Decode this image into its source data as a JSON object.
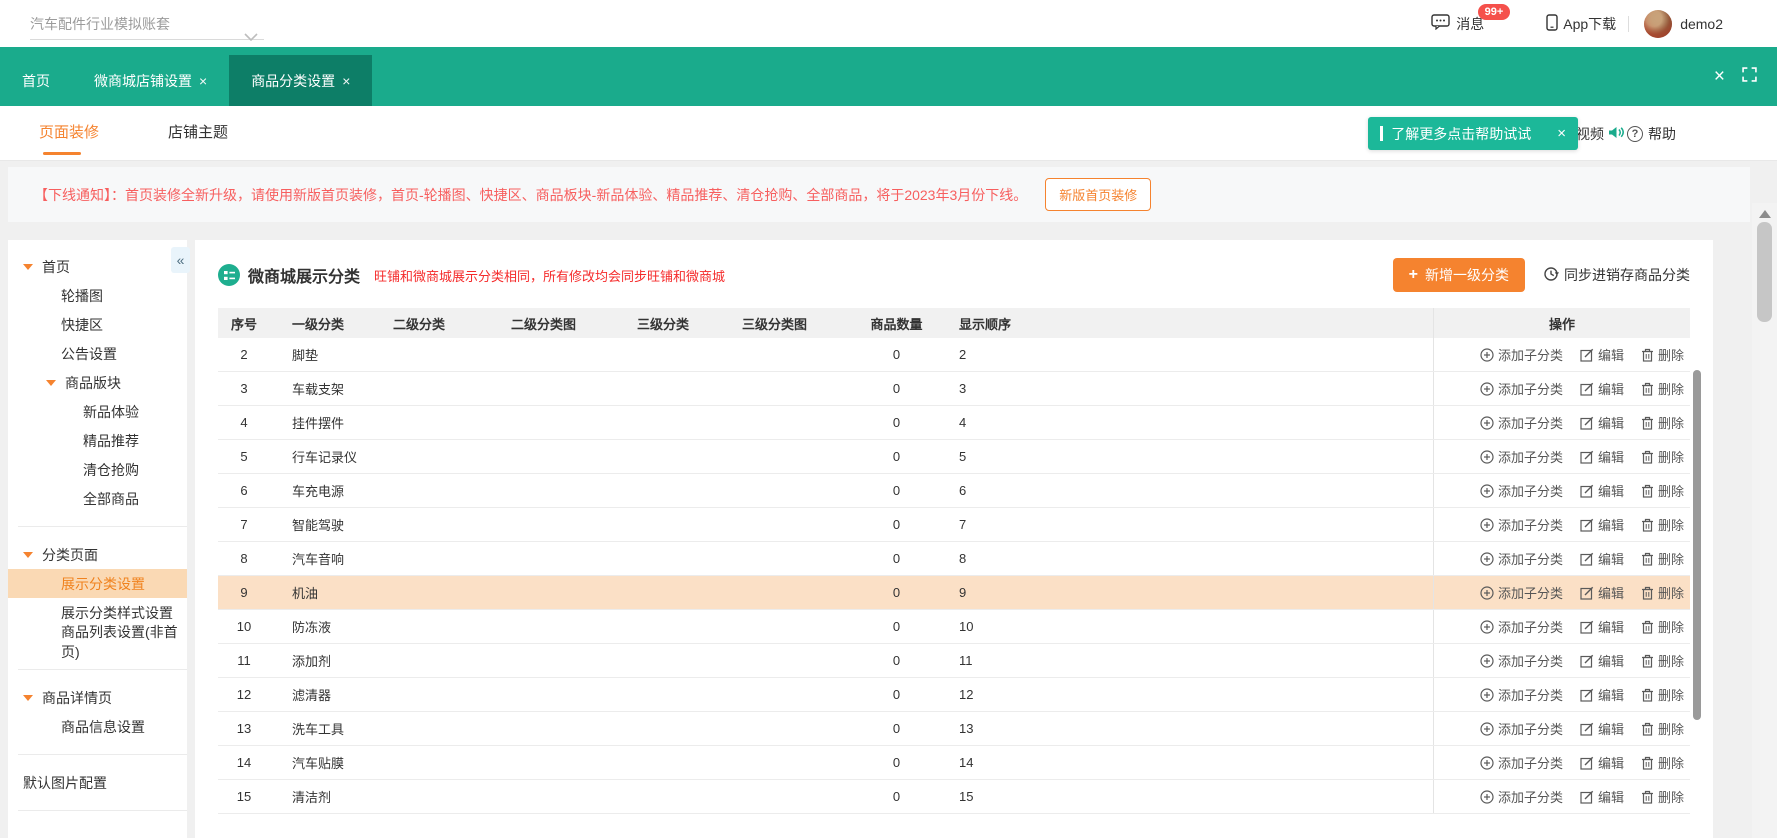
{
  "colors": {
    "teal": "#1AAB8C",
    "teal_dark": "#0D7E67",
    "orange": "#F5832F",
    "note_red": "#F52B2B",
    "notice_red": "#F75F5F",
    "row_highlight": "#FBE0C6",
    "sidebar_active": "#FAD9B4"
  },
  "topbar": {
    "account": "汽车配件行业模拟账套",
    "messages": "消息",
    "badge": "99+",
    "app_download": "App下载",
    "username": "demo2"
  },
  "window": {
    "close": "×"
  },
  "tabs": {
    "items": [
      {
        "label": "首页"
      },
      {
        "label": "微商城店铺设置",
        "close": "×"
      },
      {
        "label": "商品分类设置",
        "close": "×"
      }
    ]
  },
  "subnav": {
    "tab1": "页面装修",
    "tab2": "店铺主题",
    "tooltip": "了解更多点击帮助试试",
    "tooltip_close": "×",
    "video": "视频",
    "help": "帮助",
    "help_icon": "?"
  },
  "notice": {
    "text": "【下线通知】：首页装修全新升级，请使用新版首页装修，首页-轮播图、快捷区、商品板块-新品体验、精品推荐、清仓抢购、全部商品，将于2023年3月份下线。",
    "button": "新版首页装修"
  },
  "sidebar": {
    "collapse": "«",
    "items": [
      {
        "label": "首页",
        "level": 0,
        "caret": true
      },
      {
        "label": "轮播图",
        "level": 1
      },
      {
        "label": "快捷区",
        "level": 1
      },
      {
        "label": "公告设置",
        "level": 1
      },
      {
        "label": "商品版块",
        "level": 1,
        "caret": true
      },
      {
        "label": "新品体验",
        "level": 2
      },
      {
        "label": "精品推荐",
        "level": 2
      },
      {
        "label": "清仓抢购",
        "level": 2
      },
      {
        "label": "全部商品",
        "level": 2,
        "divider": true
      },
      {
        "label": "分类页面",
        "level": 0,
        "caret": true
      },
      {
        "label": "展示分类设置",
        "level": 1,
        "active": true
      },
      {
        "label": "展示分类样式设置",
        "level": 1
      },
      {
        "label": "商品列表设置(非首页)",
        "level": 1,
        "divider": true
      },
      {
        "label": "商品详情页",
        "level": 0,
        "caret": true
      },
      {
        "label": "商品信息设置",
        "level": 1,
        "divider": true
      },
      {
        "label": "默认图片配置",
        "level": 0,
        "divider": true
      }
    ]
  },
  "main": {
    "title": "微商城展示分类",
    "note": "旺铺和微商城展示分类相同，所有修改均会同步旺铺和微商城",
    "add_plus": "+",
    "add_button": "新增一级分类",
    "sync_button": "同步进销存商品分类"
  },
  "table": {
    "headers": [
      "序号",
      "一级分类",
      "二级分类",
      "二级分类图",
      "三级分类",
      "三级分类图",
      "商品数量",
      "显示顺序",
      "操作"
    ],
    "actions": {
      "add": "添加子分类",
      "edit": "编辑",
      "del": "删除"
    },
    "rows": [
      {
        "seq": "2",
        "name": "脚垫",
        "qty": "0",
        "order": "2"
      },
      {
        "seq": "3",
        "name": "车载支架",
        "qty": "0",
        "order": "3"
      },
      {
        "seq": "4",
        "name": "挂件摆件",
        "qty": "0",
        "order": "4"
      },
      {
        "seq": "5",
        "name": "行车记录仪",
        "qty": "0",
        "order": "5"
      },
      {
        "seq": "6",
        "name": "车充电源",
        "qty": "0",
        "order": "6"
      },
      {
        "seq": "7",
        "name": "智能驾驶",
        "qty": "0",
        "order": "7"
      },
      {
        "seq": "8",
        "name": "汽车音响",
        "qty": "0",
        "order": "8"
      },
      {
        "seq": "9",
        "name": "机油",
        "qty": "0",
        "order": "9",
        "highlight": true
      },
      {
        "seq": "10",
        "name": "防冻液",
        "qty": "0",
        "order": "10"
      },
      {
        "seq": "11",
        "name": "添加剂",
        "qty": "0",
        "order": "11"
      },
      {
        "seq": "12",
        "name": "滤清器",
        "qty": "0",
        "order": "12"
      },
      {
        "seq": "13",
        "name": "洗车工具",
        "qty": "0",
        "order": "13"
      },
      {
        "seq": "14",
        "name": "汽车贴膜",
        "qty": "0",
        "order": "14"
      },
      {
        "seq": "15",
        "name": "清洁剂",
        "qty": "0",
        "order": "15"
      }
    ]
  }
}
